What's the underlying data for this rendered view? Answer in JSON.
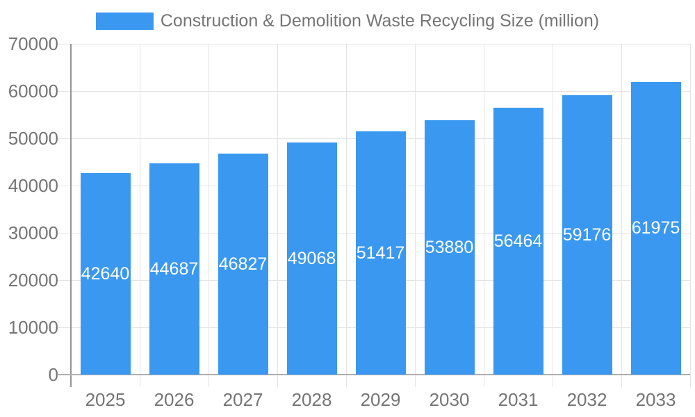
{
  "legend": {
    "label": "Construction & Demolition Waste Recycling Size (million)",
    "swatch_color": "#3a98f0"
  },
  "chart_data": {
    "type": "bar",
    "title": "Construction & Demolition Waste Recycling Size (million)",
    "categories": [
      "2025",
      "2026",
      "2027",
      "2028",
      "2029",
      "2030",
      "2031",
      "2032",
      "2033"
    ],
    "series": [
      {
        "name": "Construction & Demolition Waste Recycling Size (million)",
        "values": [
          42640,
          44687,
          46827,
          49068,
          51417,
          53880,
          56464,
          59176,
          61975
        ]
      }
    ],
    "values": [
      42640,
      44687,
      46827,
      49068,
      51417,
      53880,
      56464,
      59176,
      61975
    ],
    "value_labels": [
      "42640",
      "44687",
      "46827",
      "49068",
      "51417",
      "53880",
      "56464",
      "59176",
      "61975"
    ],
    "xlabel": "",
    "ylabel": "",
    "ylim": [
      0,
      70000
    ],
    "yticks": [
      0,
      10000,
      20000,
      30000,
      40000,
      50000,
      60000,
      70000
    ],
    "grid": true,
    "legend_position": "top-center",
    "bar_color": "#3a98f0",
    "value_label_color": "#ffffff",
    "axis_text_color": "#757575",
    "gridline_color": "#e3e3e3",
    "yaxis_line_color": "#949494",
    "baseline_color": "#aeaeae"
  }
}
